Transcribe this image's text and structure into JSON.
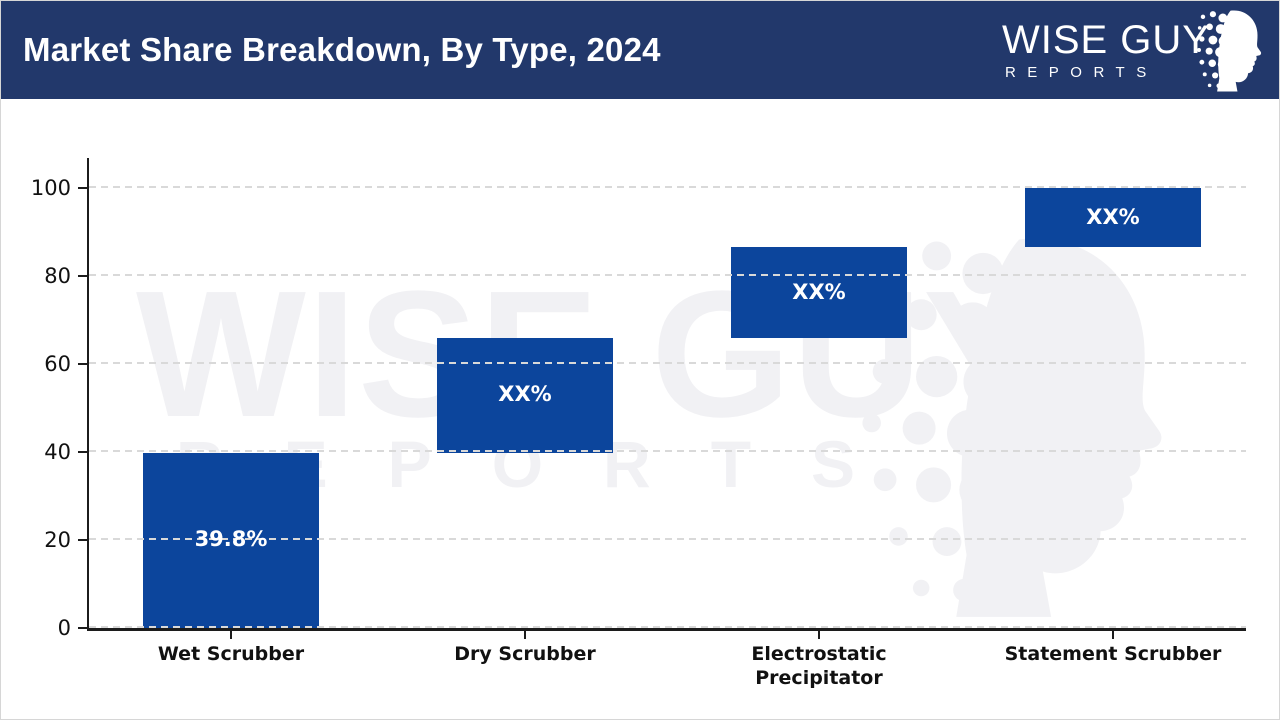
{
  "header": {
    "title": "Market Share Breakdown, By Type, 2024",
    "bg_color": "#22386B",
    "logo": {
      "brand": "WISE GUY",
      "sub": "REPORTS"
    }
  },
  "watermark": {
    "brand": "WISE GUY",
    "sub": "REPORTS"
  },
  "chart_data": {
    "type": "bar",
    "subtype": "floating-waterfall-bars",
    "title": "Market Share Breakdown, By Type, 2024",
    "xlabel": "",
    "ylabel": "",
    "categories": [
      "Wet Scrubber",
      "Dry Scrubber",
      "Electrostatic Precipitator",
      "Statement Scrubber"
    ],
    "series": [
      {
        "name": "Market share (%)",
        "segments": [
          {
            "category": "Wet Scrubber",
            "start": 0,
            "end": 39.8,
            "label": "39.8%"
          },
          {
            "category": "Dry Scrubber",
            "start": 39.8,
            "end": 66,
            "label": "XX%"
          },
          {
            "category": "Electrostatic Precipitator",
            "start": 66,
            "end": 86.5,
            "label": "XX%"
          },
          {
            "category": "Statement Scrubber",
            "start": 86.5,
            "end": 100,
            "label": "XX%"
          }
        ]
      }
    ],
    "yticks": [
      0,
      20,
      40,
      60,
      80,
      100
    ],
    "ylim": [
      0,
      105
    ],
    "grid": {
      "axis": "y",
      "style": "dashed",
      "color": "#d9d9d9"
    },
    "legend": "none",
    "colors": {
      "bar": "#0C459C",
      "bar_label": "#ffffff",
      "axis": "#1c1c1c",
      "tick_text": "#111111",
      "header_bg": "#22386B",
      "watermark": "#f1f1f4"
    }
  }
}
